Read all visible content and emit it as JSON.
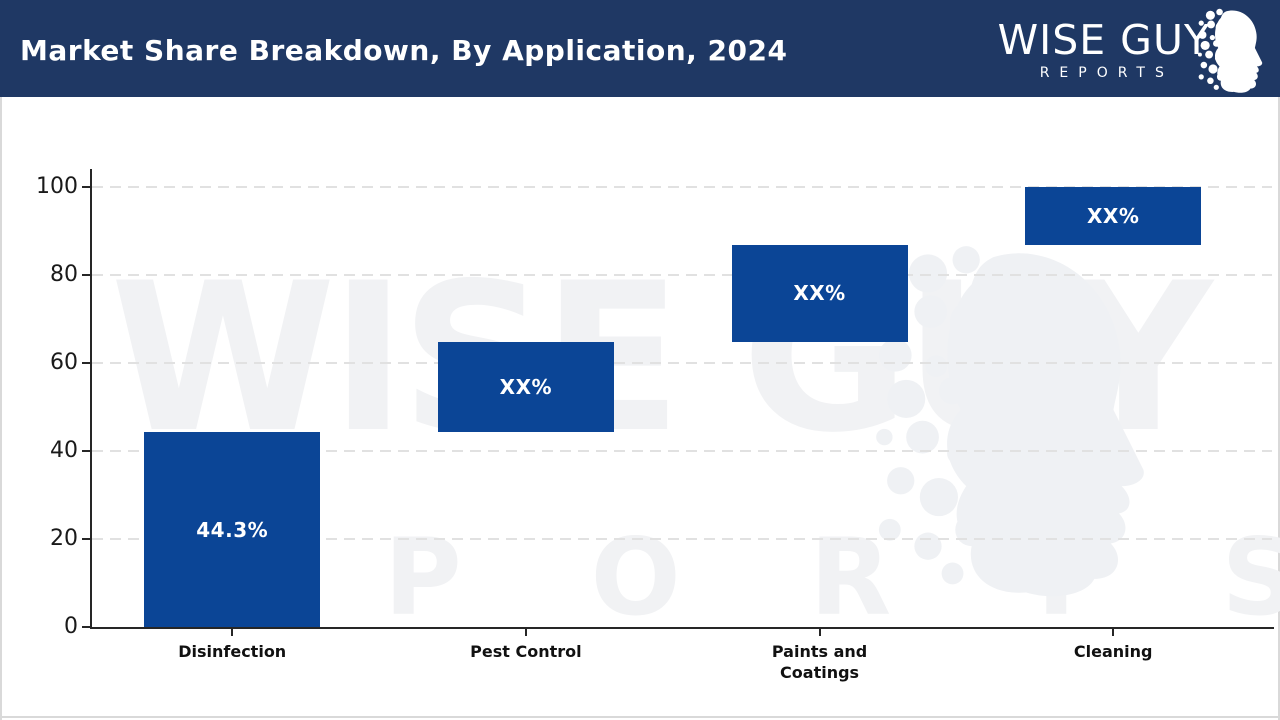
{
  "header": {
    "title": "Market Share Breakdown, By Application, 2024",
    "logo": {
      "name": "WISE GUY",
      "tagline": "REPORTS"
    }
  },
  "watermark": {
    "big_text": "WISE GUY",
    "letters": "P O R T S"
  },
  "chart_data": {
    "type": "bar",
    "subtype": "waterfall",
    "title": "Market Share Breakdown, By Application, 2024",
    "categories": [
      "Disinfection",
      "Pest Control",
      "Paints and Coatings",
      "Cleaning"
    ],
    "bars": [
      {
        "category": "Disinfection",
        "start": 0,
        "end": 44.3,
        "value": 44.3,
        "value_label": "44.3%"
      },
      {
        "category": "Pest Control",
        "start": 44.3,
        "end": 64.8,
        "value": 20.5,
        "value_label": "XX%"
      },
      {
        "category": "Paints and Coatings",
        "start": 64.8,
        "end": 86.8,
        "value": 22.0,
        "value_label": "XX%"
      },
      {
        "category": "Cleaning",
        "start": 86.8,
        "end": 100,
        "value": 13.2,
        "value_label": "XX%"
      }
    ],
    "yticks": [
      0,
      20,
      40,
      60,
      80,
      100
    ],
    "ylim": [
      0,
      105
    ],
    "xlabel": "",
    "ylabel": "",
    "grid": {
      "axis": "y",
      "style": "dashed",
      "color": "#e1e1e1"
    },
    "legend": "none",
    "bar_color": "#0b4596",
    "bar_label_color": "#ffffff"
  },
  "colors": {
    "header_bg": "#1f3864",
    "accent_blue": "#0b4596",
    "watermark": "#f1f2f4",
    "axis": "#262626",
    "divider": "#d9d9d9"
  }
}
